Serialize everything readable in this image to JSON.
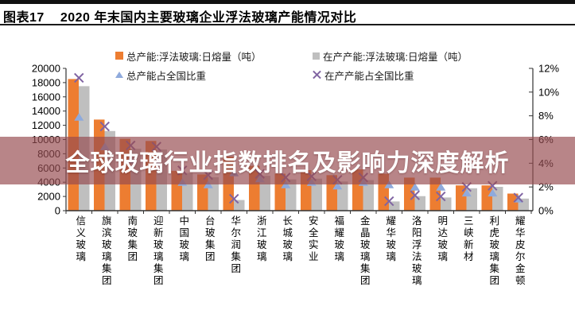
{
  "header": {
    "title_prefix": "图表17",
    "title_text": "2020 年末国内主要玻璃企业浮法玻璃产能情况对比"
  },
  "overlay": {
    "text": "全球玻璃行业指数排名及影响力深度解析",
    "bg_color": "rgba(150,75,80,0.68)",
    "text_color": "#ffffff"
  },
  "chart_data": {
    "type": "bar",
    "title": "2020 年末国内主要玻璃企业浮法玻璃产能情况对比",
    "grid": false,
    "legend_position": "top",
    "categories": [
      "信义玻璃",
      "旗滨玻璃集团",
      "南玻集团",
      "迎新玻璃集团",
      "中国玻璃",
      "台玻集团",
      "华尔润集团",
      "浙江玻璃",
      "长城玻璃",
      "安全实业",
      "福耀玻璃",
      "金晶玻璃集团",
      "耀华玻璃",
      "洛阳浮法玻璃",
      "明达玻璃",
      "三峡新材",
      "利虎玻璃集团",
      "耀华皮尔金顿"
    ],
    "series": [
      {
        "name": "总产能:浮法玻璃:日熔量（吨）",
        "type": "bar",
        "axis": "left",
        "color": "#ED7D31",
        "values": [
          18500,
          12800,
          10100,
          9800,
          5600,
          5100,
          7600,
          6300,
          5200,
          5700,
          5000,
          5800,
          5200,
          4650,
          4650,
          3550,
          3550,
          2400
        ]
      },
      {
        "name": "在产产能:浮法玻璃:日熔量（吨）",
        "type": "bar",
        "axis": "left",
        "color": "#BFBFBF",
        "values": [
          17500,
          11200,
          8700,
          8600,
          5300,
          4700,
          1500,
          4900,
          4400,
          4500,
          4100,
          4300,
          1300,
          2050,
          1850,
          3150,
          3350,
          1700
        ]
      },
      {
        "name": "总产能占全国比重",
        "type": "scatter-triangle",
        "axis": "right",
        "color": "#8FAADC",
        "values_percent": [
          7.9,
          5.4,
          4.3,
          4.1,
          2.4,
          2.2,
          3.2,
          2.7,
          2.2,
          2.4,
          2.1,
          2.4,
          2.2,
          2.0,
          2.0,
          1.5,
          1.5,
          1.0
        ]
      },
      {
        "name": "在产产能占全国比重",
        "type": "scatter-x",
        "axis": "right",
        "color": "#8064A2",
        "values_percent": [
          11.2,
          7.1,
          5.5,
          5.4,
          3.4,
          3.0,
          1.0,
          3.1,
          2.8,
          2.9,
          2.6,
          2.8,
          0.8,
          1.3,
          1.2,
          2.0,
          2.1,
          1.1
        ]
      }
    ],
    "left_axis": {
      "min": 0,
      "max": 20000,
      "step": 2000,
      "labels": [
        "0",
        "2000",
        "4000",
        "6000",
        "8000",
        "10000",
        "12000",
        "14000",
        "16000",
        "18000",
        "20000"
      ]
    },
    "right_axis": {
      "min": 0,
      "max": 12,
      "step": 2,
      "labels": [
        "0%",
        "2%",
        "4%",
        "6%",
        "8%",
        "10%",
        "12%"
      ]
    }
  }
}
